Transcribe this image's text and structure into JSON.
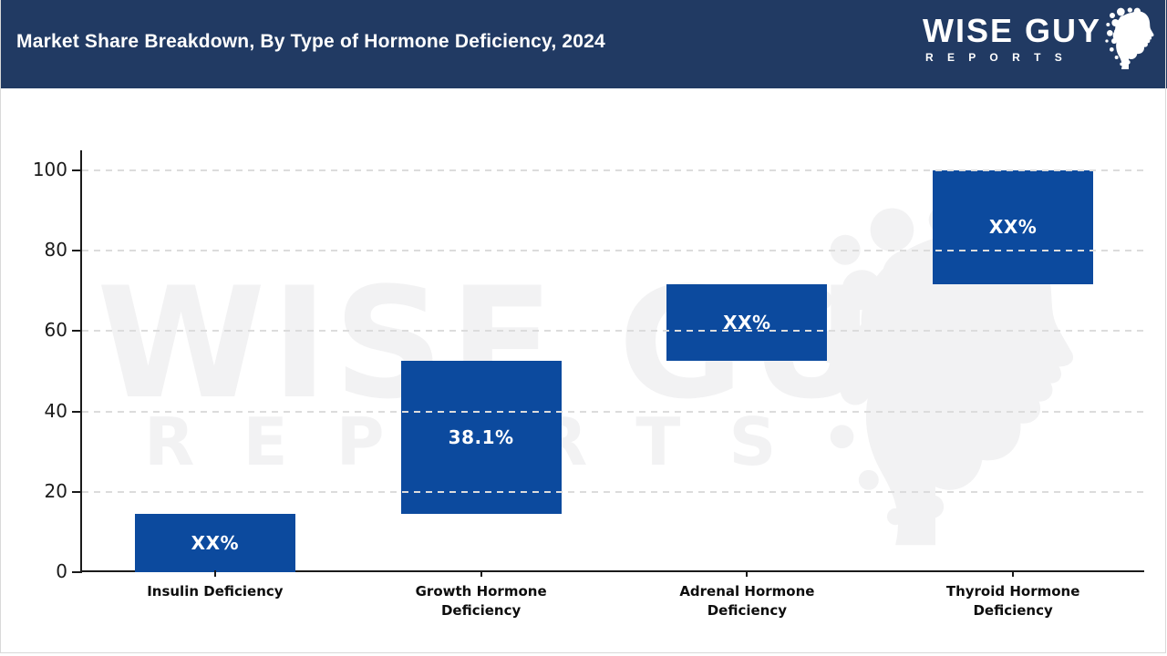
{
  "header": {
    "title": "Market Share Breakdown, By Type of Hormone Deficiency, 2024",
    "logo": {
      "line1": "WISE GUY",
      "line2": "R E P O R T S"
    }
  },
  "watermark": {
    "line1": "WISE GUY",
    "line2": "R E P O R T S"
  },
  "colors": {
    "header_navy": "#213a63",
    "bar_blue": "#0c4a9e",
    "grid_gray": "#dcdcdc",
    "axis_black": "#1a1a1a",
    "watermark_gray": "#f2f2f3",
    "bar_label_white": "#ffffff"
  },
  "chart_data": {
    "type": "bar",
    "subtype": "waterfall",
    "title": "Market Share Breakdown, By Type of Hormone Deficiency, 2024",
    "unit": "%",
    "categories": [
      "Insulin Deficiency",
      "Growth Hormone\nDeficiency",
      "Adrenal Hormone\nDeficiency",
      "Thyroid Hormone\nDeficiency"
    ],
    "segments": [
      {
        "category": "Insulin Deficiency",
        "from": 0,
        "to": 14.6,
        "label": "XX%"
      },
      {
        "category": "Growth Hormone Deficiency",
        "from": 14.6,
        "to": 52.7,
        "label": "38.1%"
      },
      {
        "category": "Adrenal Hormone Deficiency",
        "from": 52.7,
        "to": 71.7,
        "label": "XX%"
      },
      {
        "category": "Thyroid Hormone Deficiency",
        "from": 71.7,
        "to": 100.0,
        "label": "XX%"
      }
    ],
    "yticks": [
      0,
      20,
      40,
      60,
      80,
      100
    ],
    "ylim": [
      0,
      105
    ],
    "grid": "dashed-horizontal",
    "legend": "none"
  }
}
